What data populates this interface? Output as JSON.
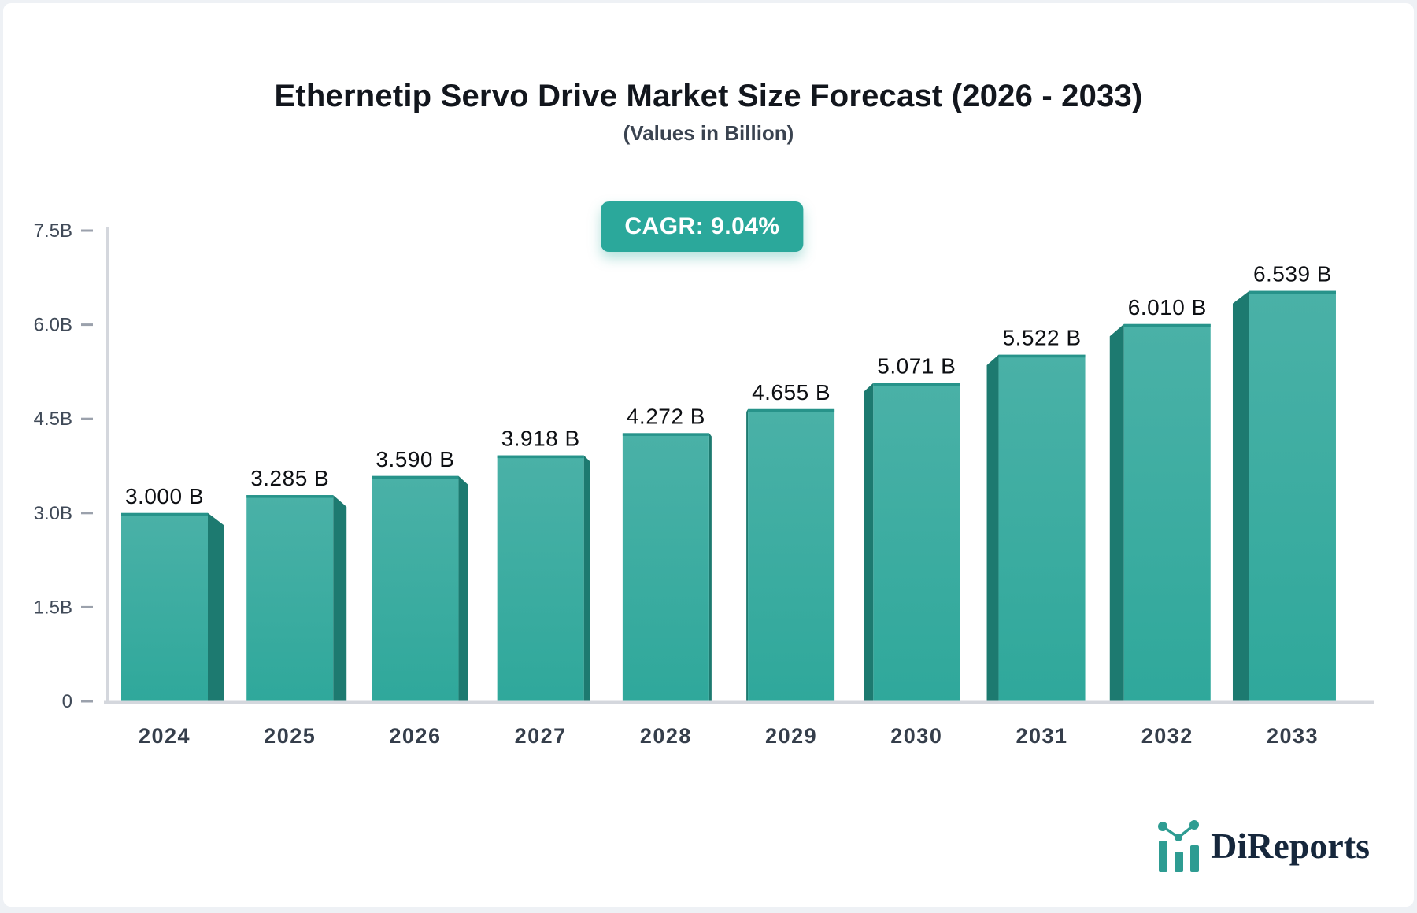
{
  "header": {
    "title": "Ethernetip Servo Drive Market Size Forecast (2026 - 2033)",
    "subtitle": "(Values in Billion)",
    "cagr_label": "CAGR: 9.04%"
  },
  "footer": {
    "brand": "DiReports",
    "brand_icon": "bar-line-chart-icon"
  },
  "colors": {
    "bar_face_top": "#4ab1a7",
    "bar_face_bottom": "#2fa89b",
    "bar_side": "#1d7a70",
    "bar_top_edge": "#27938a",
    "badge_bg": "#2ba89b",
    "badge_text": "#ffffff",
    "axis_line": "#d4d7dd",
    "tick_dash": "#9ba1ac",
    "y_label": "#404a58",
    "x_label": "#353e4b",
    "value_label": "#0d0f13",
    "title_text": "#12161d",
    "subtitle_text": "#3a4350",
    "logo_text": "#16273c",
    "logo_icon": "#2e9c92",
    "card_bg": "#ffffff",
    "page_bg": "#eef1f5"
  },
  "chart_data": {
    "type": "bar",
    "title": "Ethernetip Servo Drive Market Size Forecast (2026 - 2033)",
    "subtitle": "(Values in Billion)",
    "cagr_percent": 9.04,
    "unit": "Billion",
    "categories": [
      "2024",
      "2025",
      "2026",
      "2027",
      "2028",
      "2029",
      "2030",
      "2031",
      "2032",
      "2033"
    ],
    "values": [
      3.0,
      3.285,
      3.59,
      3.918,
      4.272,
      4.655,
      5.071,
      5.522,
      6.01,
      6.539
    ],
    "value_labels": [
      "3.000 B",
      "3.285 B",
      "3.590 B",
      "3.918 B",
      "4.272 B",
      "4.655 B",
      "5.071 B",
      "5.522 B",
      "6.010 B",
      "6.539 B"
    ],
    "ylim": [
      0,
      7.5
    ],
    "yticks": [
      {
        "value": 0,
        "label": "0"
      },
      {
        "value": 1.5,
        "label": "1.5B"
      },
      {
        "value": 3.0,
        "label": "3.0B"
      },
      {
        "value": 4.5,
        "label": "4.5B"
      },
      {
        "value": 6.0,
        "label": "6.0B"
      },
      {
        "value": 7.5,
        "label": "7.5B"
      }
    ],
    "grid": false,
    "legend_position": "none",
    "style": "3d-perspective-bars"
  }
}
